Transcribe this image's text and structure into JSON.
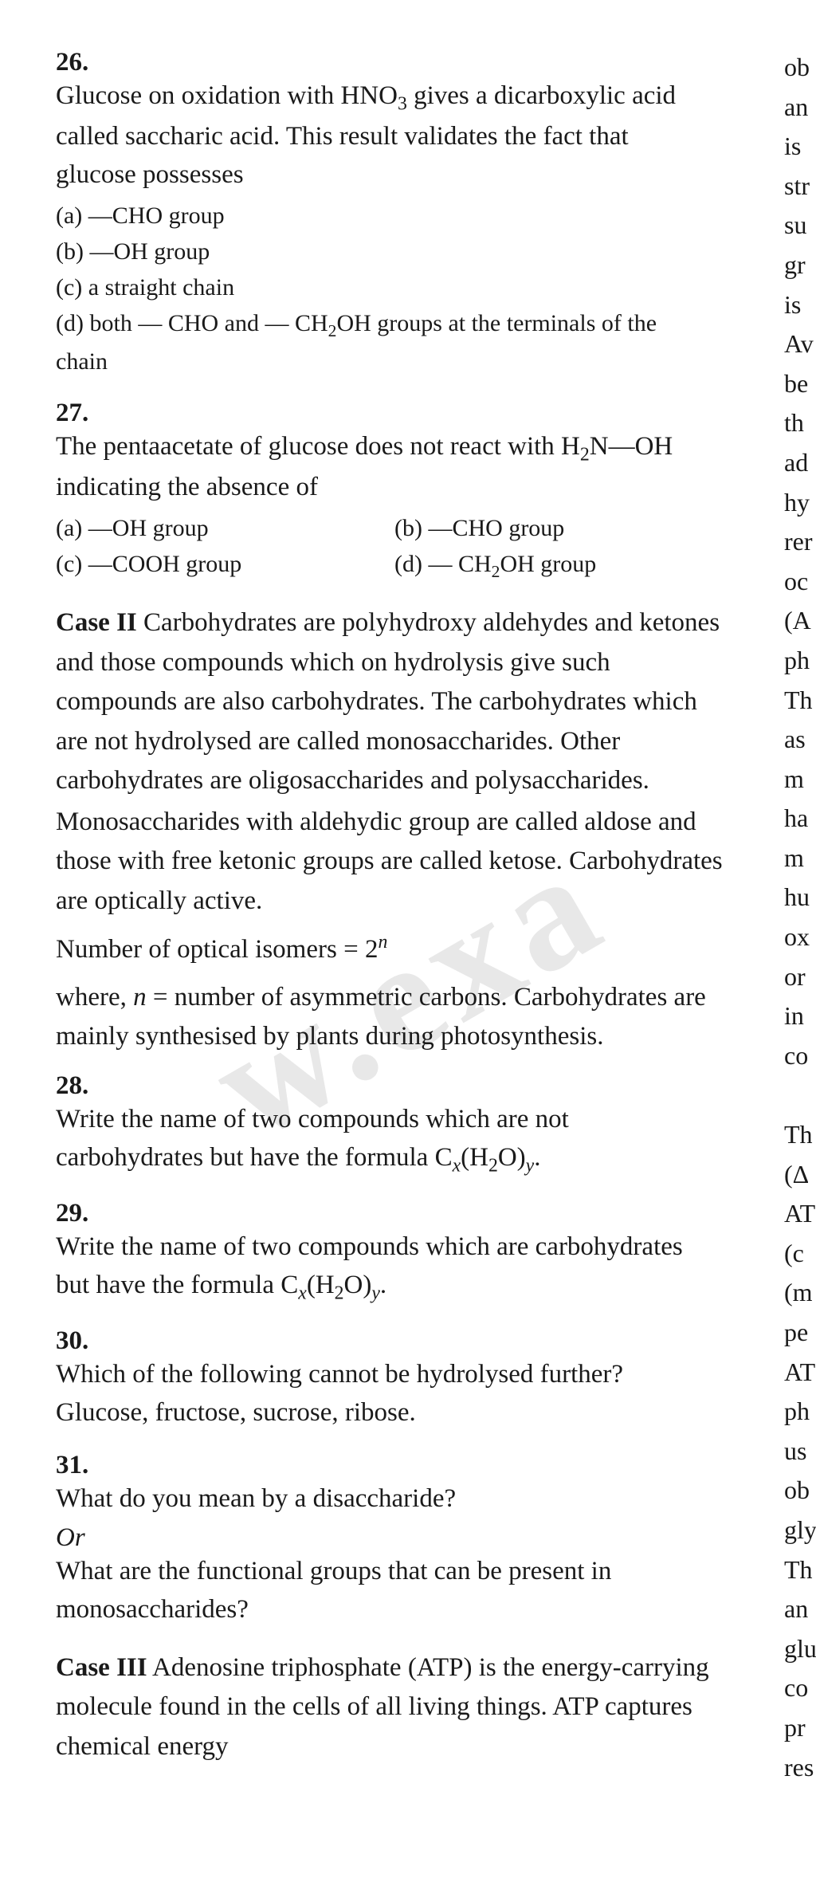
{
  "watermark": "w.exa",
  "cutoff_fragments": [
    "ob",
    "an",
    "is",
    "str",
    "su",
    "gr",
    "is",
    "Av",
    "be",
    "th",
    "ad",
    "hy",
    "rer",
    "oc",
    "(A",
    "ph",
    "Th",
    "as",
    "m",
    "ha",
    "m",
    "hu",
    "ox",
    "or",
    "in",
    "co",
    "",
    "Th",
    "(Δ",
    "AT",
    "(c",
    "(m",
    "pe",
    "AT",
    "ph",
    "us",
    "ob",
    "gly",
    "Th",
    "an",
    "glu",
    "co",
    "pr",
    "res"
  ],
  "q26": {
    "num": "26.",
    "stem_l1": "Glucose on oxidation with HNO",
    "stem_sub": "3",
    "stem_l1b": " gives a",
    "stem_l2": "dicarboxylic acid called saccharic acid. This result validates the fact that glucose possesses",
    "a": "(a) —CHO group",
    "b": "(b) —OH group",
    "c": "(c) a straight chain",
    "d_pre": "(d) both — CHO and — CH",
    "d_sub": "2",
    "d_post": "OH groups at the terminals of the chain"
  },
  "q27": {
    "num": "27.",
    "stem_l1": "The pentaacetate of glucose does not react with H",
    "stem_sub": "2",
    "stem_mid": "N—OH indicating the absence of",
    "a": "(a) —OH group",
    "b": "(b) —CHO group",
    "c": "(c) —COOH group",
    "d_pre": "(d) — CH",
    "d_sub": "2",
    "d_post": "OH group"
  },
  "case2": {
    "head": "Case II",
    "p1": "Carbohydrates are polyhydroxy aldehydes and ketones and those compounds which on hydrolysis give such compounds are also carbohydrates. The carbohydrates which are not hydrolysed are called monosaccharides. Other carbohydrates are oligosaccharides and polysaccharides.",
    "p2": "Monosaccharides with aldehydic group are called aldose and those with free ketonic groups are called ketose. Carbohydrates are optically active.",
    "p3_pre": "Number of optical isomers = 2",
    "p3_sup": "n",
    "p4_pre": "where, ",
    "p4_n": "n",
    "p4_post": " = number of asymmetric carbons. Carbohydrates are mainly synthesised by plants during photosynthesis."
  },
  "q28": {
    "num": "28.",
    "stem": "Write the name of two compounds which are not carbohydrates but have the formula C",
    "sub_x": "x",
    "mid": "(H",
    "sub_2": "2",
    "mid2": "O)",
    "sub_y": "y",
    "post": "."
  },
  "q29": {
    "num": "29.",
    "stem": "Write the name of two compounds which are carbohydrates but have the formula C",
    "sub_x": "x",
    "mid": "(H",
    "sub_2": "2",
    "mid2": "O)",
    "sub_y": "y",
    "post": "."
  },
  "q30": {
    "num": "30.",
    "stem": "Which of the following cannot be hydrolysed further?",
    "line2": "Glucose, fructose, sucrose, ribose."
  },
  "q31": {
    "num": "31.",
    "stem": "What do you mean by a disaccharide?",
    "or": "Or",
    "or_body": "What are the functional groups that can be present in monosaccharides?"
  },
  "case3": {
    "head": "Case III",
    "p1": "Adenosine triphosphate (ATP) is the energy-carrying molecule found in the cells of all living things. ATP captures chemical energy"
  }
}
